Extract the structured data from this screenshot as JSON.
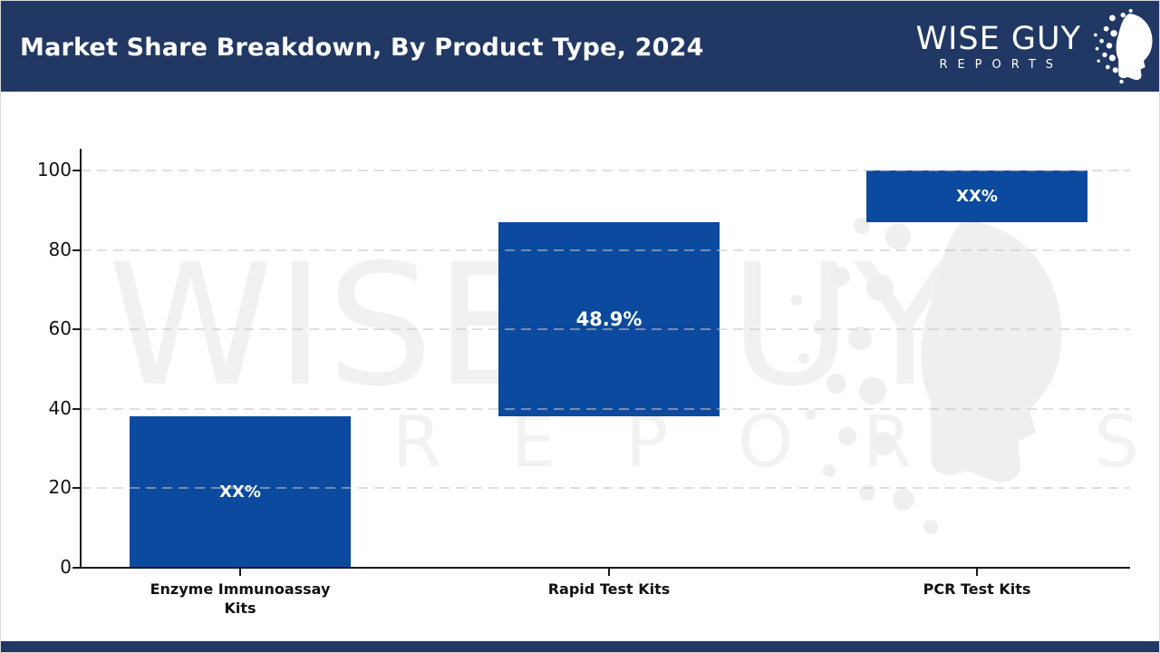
{
  "header": {
    "title": "Market Share Breakdown, By Product Type, 2024",
    "logo_line1": "WISE GUY",
    "logo_line2": "REPORTS"
  },
  "watermark": {
    "line1": "WISE GUY",
    "line2": "R E P O R T S"
  },
  "chart_data": {
    "type": "bar",
    "subtype": "floating-segment",
    "title": "Market Share Breakdown, By Product Type, 2024",
    "categories": [
      "Enzyme Immunoassay\nKits",
      "Rapid Test Kits",
      "PCR Test Kits"
    ],
    "bars": [
      {
        "category": "Enzyme Immunoassay Kits",
        "label": "XX%",
        "start": 0,
        "end": 38.1
      },
      {
        "category": "Rapid Test Kits",
        "label": "48.9%",
        "start": 38.1,
        "end": 87.0
      },
      {
        "category": "PCR Test Kits",
        "label": "XX%",
        "start": 87.0,
        "end": 100.0
      }
    ],
    "xlabel": "",
    "ylabel": "",
    "yticks": [
      0,
      20,
      40,
      60,
      80,
      100
    ],
    "ylim": [
      0,
      105
    ],
    "grid": "dashed-horizontal",
    "legend": "none",
    "bar_color": "#0b4a9e",
    "bar_label_color": "#ffffff"
  },
  "colors": {
    "header_bg": "#213864",
    "footer_bg": "#213864",
    "bar": "#0b4a9e",
    "axis": "#1a1a1a",
    "watermark": "#f1f1f1"
  }
}
